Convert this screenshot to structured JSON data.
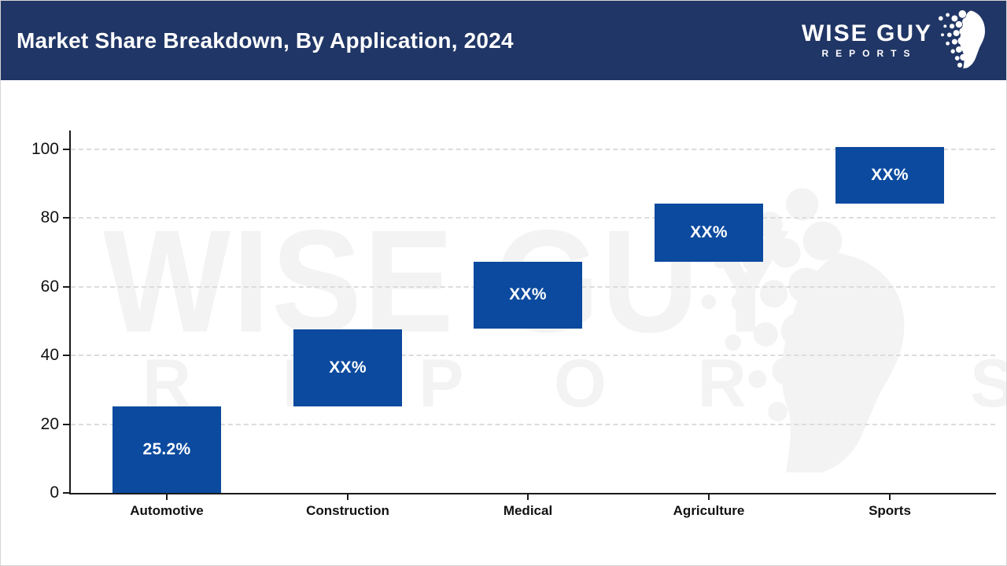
{
  "header": {
    "title": "Market Share Breakdown, By Application, 2024",
    "logo": {
      "line1": "WISE GUY",
      "line2": "REPORTS",
      "icon": "dotted-head-profile"
    }
  },
  "watermark": {
    "line1": "WISE GUY",
    "line2": "R E P O R T S",
    "icon": "dotted-head-profile"
  },
  "colors": {
    "header_bg": "#203666",
    "bar": "#0b4a9e",
    "grid": "#dcdcdc",
    "axis": "#1a1a1a",
    "bar_label_text": "#ffffff",
    "watermark": "#f3f3f3"
  },
  "chart_data": {
    "type": "bar",
    "subtype": "waterfall-floating-segments",
    "title": "Market Share Breakdown, By Application, 2024",
    "xlabel": "",
    "ylabel": "",
    "ylim": [
      0,
      100
    ],
    "yticks": [
      0,
      20,
      40,
      60,
      80,
      100
    ],
    "grid": "horizontal-dashed",
    "legend": "none",
    "categories": [
      "Automotive",
      "Construction",
      "Medical",
      "Agriculture",
      "Sports"
    ],
    "bars": [
      {
        "category": "Automotive",
        "start": 0,
        "end": 25.2,
        "value": 25.2,
        "label": "25.2%"
      },
      {
        "category": "Construction",
        "start": 25.2,
        "end": 47.6,
        "value": 22.4,
        "label": "XX%"
      },
      {
        "category": "Medical",
        "start": 47.8,
        "end": 67.3,
        "value": 19.5,
        "label": "XX%"
      },
      {
        "category": "Agriculture",
        "start": 67.3,
        "end": 84.2,
        "value": 16.9,
        "label": "XX%"
      },
      {
        "category": "Sports",
        "start": 84.3,
        "end": 100.7,
        "value": 16.4,
        "label": "XX%"
      }
    ]
  }
}
